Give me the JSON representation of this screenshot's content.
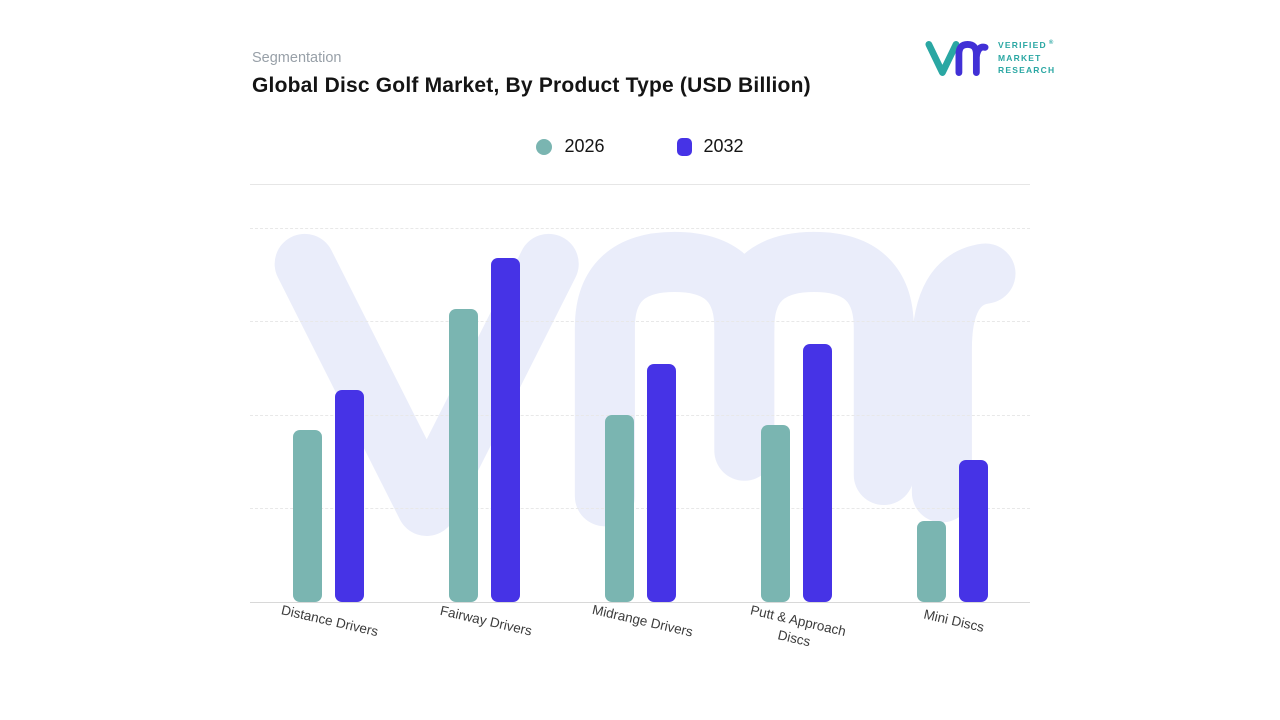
{
  "header": {
    "eyebrow": "Segmentation",
    "title": "Global Disc Golf Market, By Product Type (USD Billion)"
  },
  "logo": {
    "lines": [
      "VERIFIED",
      "MARKET",
      "RESEARCH"
    ],
    "registered": "®"
  },
  "legend": [
    {
      "label": "2026",
      "color": "#7AB5B1",
      "shape": "circle"
    },
    {
      "label": "2032",
      "color": "#4633E6",
      "shape": "rounded-square"
    }
  ],
  "chart_data": {
    "type": "bar",
    "title": "Global Disc Golf Market, By Product Type (USD Billion)",
    "categories": [
      "Distance Drivers",
      "Fairway Drivers",
      "Midrange Drivers",
      "Putt & Approach Discs",
      "Mini Discs"
    ],
    "series": [
      {
        "name": "2026",
        "color": "#7AB5B1",
        "values": [
          1.7,
          2.9,
          1.85,
          1.75,
          0.8
        ]
      },
      {
        "name": "2032",
        "color": "#4633E6",
        "values": [
          2.1,
          3.4,
          2.35,
          2.55,
          1.4
        ]
      }
    ],
    "ylim": [
      0,
      3.7
    ],
    "value_units": "relative (no y-axis tick labels shown; values estimated from bar heights)",
    "yaxis_visible": false,
    "grid": "dashed horizontal lines",
    "legend_position": "top-center"
  },
  "colors": {
    "bar_2026": "#7AB5B1",
    "bar_2032": "#4633E6",
    "logo_teal": "#2AA7A3",
    "logo_indigo": "#4130D6",
    "watermark": "#EAEDFA",
    "title_text": "#141414",
    "eyebrow_text": "#98A0A8"
  }
}
